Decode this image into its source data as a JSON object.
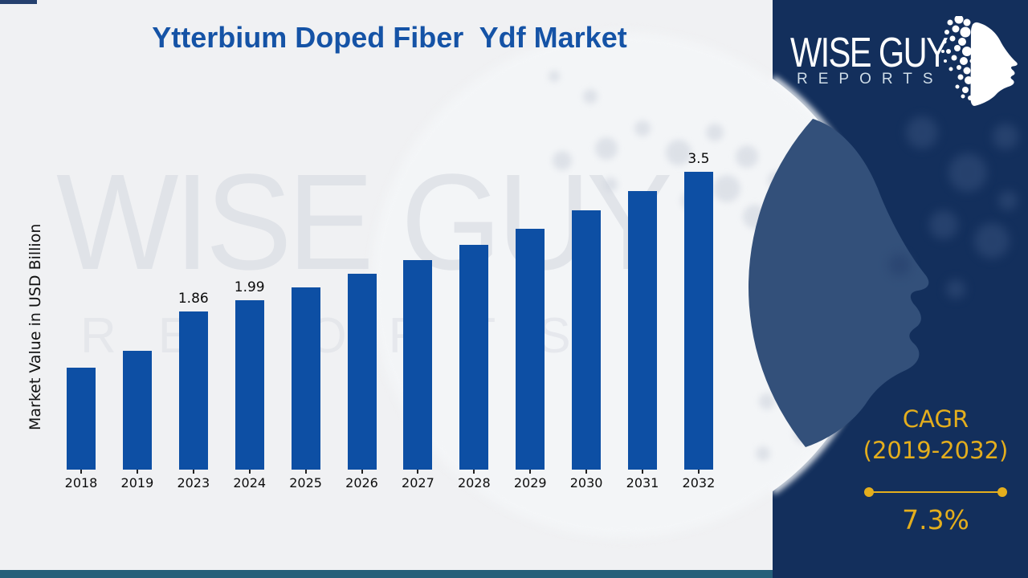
{
  "title": "Ytterbium Doped Fiber  Ydf Market",
  "watermark": {
    "line1": "WISE GUY",
    "line2": "REPORTS"
  },
  "logo": {
    "line1": "WISE GUY",
    "line2": "REPORTS"
  },
  "cagr": {
    "label": "CAGR",
    "range": "(2019-2032)",
    "value": "7.3%"
  },
  "colors": {
    "bar_blue": "#0d4fa4",
    "title_blue": "#1553a6",
    "navy_panel": "#132f5c",
    "accent_gold": "#e4ae1d",
    "teal_strip": "#26607a",
    "face_silhouette": "#33507a",
    "background": "#f0f1f3"
  },
  "chart_data": {
    "type": "bar",
    "title": "Ytterbium Doped Fiber  Ydf Market",
    "xlabel": "",
    "ylabel": "Market Value in USD Billion",
    "unit": "USD Billion",
    "categories": [
      "2018",
      "2019",
      "2023",
      "2024",
      "2025",
      "2026",
      "2027",
      "2028",
      "2029",
      "2030",
      "2031",
      "2032"
    ],
    "values": [
      1.2,
      1.4,
      1.86,
      1.99,
      2.14,
      2.3,
      2.46,
      2.64,
      2.83,
      3.05,
      3.27,
      3.5
    ],
    "data_labels": {
      "2023": "1.86",
      "2024": "1.99",
      "2032": "3.5"
    },
    "ylim": [
      0,
      3.9
    ],
    "grid": false,
    "legend": null
  }
}
